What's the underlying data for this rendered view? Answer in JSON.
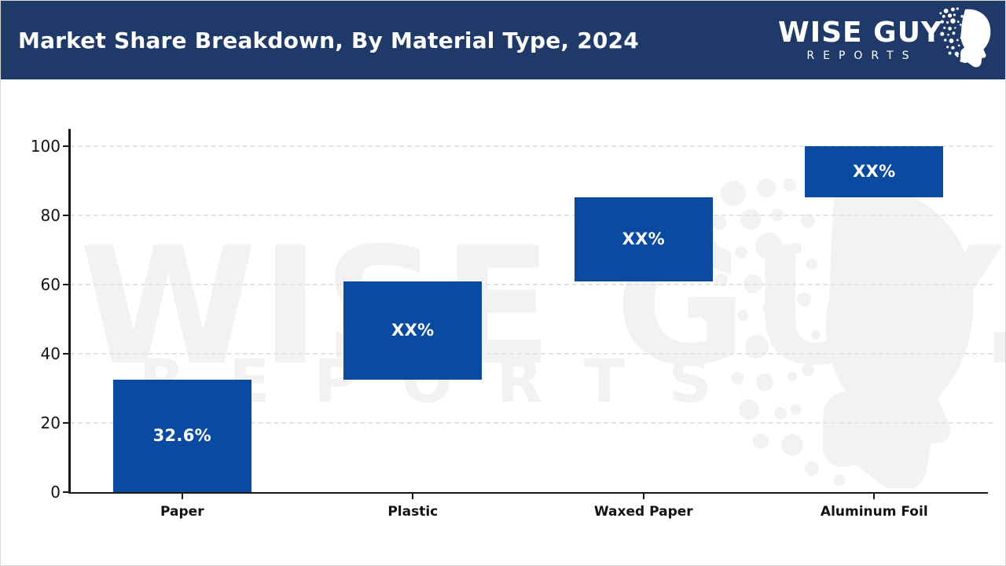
{
  "header": {
    "title": "Market Share Breakdown, By Material Type, 2024",
    "brand": {
      "line1": "WISE GUY",
      "line2": "REPORTS"
    }
  },
  "watermark": {
    "line1": "WISE GUY.",
    "line2": "REPORTS"
  },
  "chart_data": {
    "type": "bar",
    "subtype": "waterfall",
    "title": "Market Share Breakdown, By Material Type, 2024",
    "categories": [
      "Paper",
      "Plastic",
      "Waxed Paper",
      "Aluminum Foil"
    ],
    "segments": [
      {
        "category": "Paper",
        "start": 0,
        "end": 32.6,
        "delta": 32.6,
        "label": "32.6%"
      },
      {
        "category": "Plastic",
        "start": 32.6,
        "end": 61.0,
        "delta": 28.4,
        "label": "XX%"
      },
      {
        "category": "Waxed Paper",
        "start": 61.0,
        "end": 85.3,
        "delta": 24.3,
        "label": "XX%"
      },
      {
        "category": "Aluminum Foil",
        "start": 85.3,
        "end": 100.0,
        "delta": 14.7,
        "label": "XX%"
      }
    ],
    "xlabel": "",
    "ylabel": "",
    "ylim": [
      0,
      100
    ],
    "yticks": [
      0,
      20,
      40,
      60,
      80,
      100
    ],
    "grid": "horizontal dashed, behind bars",
    "legend": "none"
  },
  "colors": {
    "header_bg": "#1f3a68",
    "bar": "#0a4aa1",
    "bar_label": "#ffffff",
    "axis": "#17181a",
    "gridline": "#e3e4e6",
    "watermark": "#f2f2f4",
    "page_border": "#d8d8d8"
  }
}
